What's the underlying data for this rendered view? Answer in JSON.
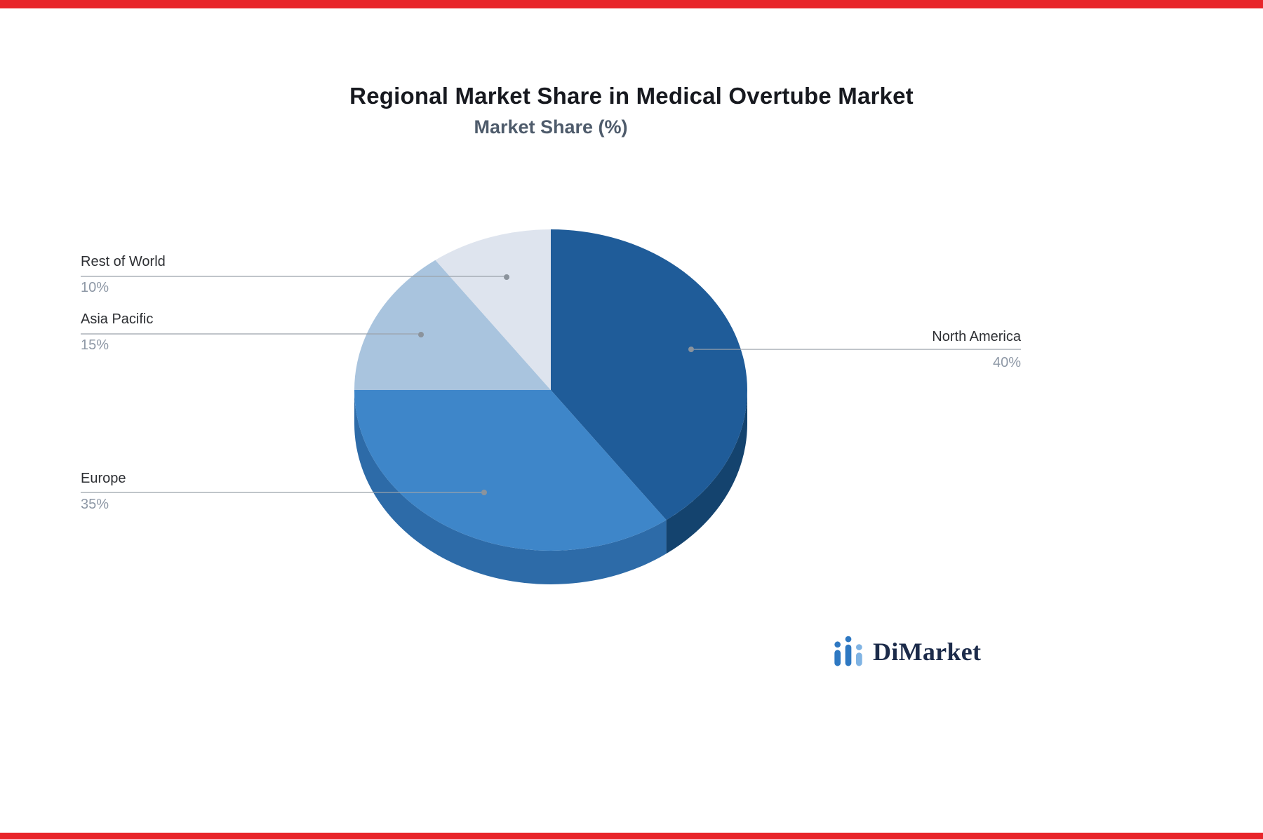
{
  "chart_data": {
    "type": "pie",
    "title": "Regional Market Share in Medical Overtube Market",
    "subtitle": "Market Share (%)",
    "unit": "%",
    "categories": [
      "North America",
      "Europe",
      "Asia Pacific",
      "Rest of World"
    ],
    "values": [
      40,
      35,
      15,
      10
    ],
    "start_angle_deg": -90,
    "direction": "clockwise",
    "effect": "3d",
    "legend": "none",
    "colors": [
      "#1f5c99",
      "#3e86c9",
      "#a9c4de",
      "#dee4ee"
    ],
    "side_colors": [
      "#14436e",
      "#2d6ba8",
      "#7fa3c4",
      "#bac3d2"
    ],
    "labels": [
      {
        "name": "North America",
        "value_label": "40%",
        "side": "right"
      },
      {
        "name": "Europe",
        "value_label": "35%",
        "side": "left"
      },
      {
        "name": "Asia Pacific",
        "value_label": "15%",
        "side": "left"
      },
      {
        "name": "Rest of World",
        "value_label": "10%",
        "side": "left"
      }
    ]
  },
  "brand": {
    "name": "DiMarket"
  },
  "frame": {
    "accent_color": "#e8252a"
  }
}
